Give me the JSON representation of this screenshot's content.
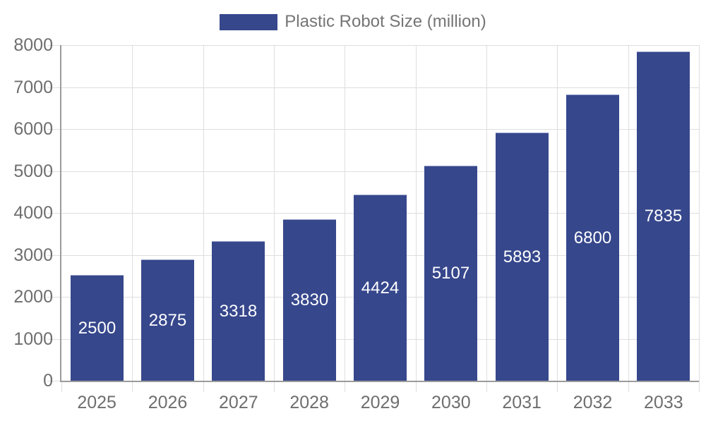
{
  "chart_data": {
    "type": "bar",
    "title": "Plastic Robot Size (million)",
    "legend": {
      "label": "Plastic Robot Size (million)",
      "position": "top"
    },
    "categories": [
      "2025",
      "2026",
      "2027",
      "2028",
      "2029",
      "2030",
      "2031",
      "2032",
      "2033"
    ],
    "series": [
      {
        "name": "Plastic Robot Size (million)",
        "values": [
          2500,
          2875,
          3318,
          3830,
          4424,
          5107,
          5893,
          6800,
          7835
        ]
      }
    ],
    "values": [
      2500,
      2875,
      3318,
      3830,
      4424,
      5107,
      5893,
      6800,
      7835
    ],
    "value_labels": [
      "2500",
      "2875",
      "3318",
      "3830",
      "4424",
      "5107",
      "5893",
      "6800",
      "7835"
    ],
    "xlabel": "",
    "ylabel": "",
    "ylim": [
      0,
      8000
    ],
    "y_ticks": [
      0,
      1000,
      2000,
      3000,
      4000,
      5000,
      6000,
      7000,
      8000
    ],
    "y_tick_labels": [
      "0",
      "1000",
      "2000",
      "3000",
      "4000",
      "5000",
      "6000",
      "7000",
      "8000"
    ],
    "grid": true,
    "colors": {
      "bar": "#36478C",
      "bar_top_edge": "#97a1c9",
      "bar_value_text": "#ffffff",
      "axis_line": "#9b9b9b",
      "gridline": "#dedede",
      "tick_text": "#6e6e6e",
      "legend_text": "#757575",
      "background": "#ffffff"
    }
  }
}
